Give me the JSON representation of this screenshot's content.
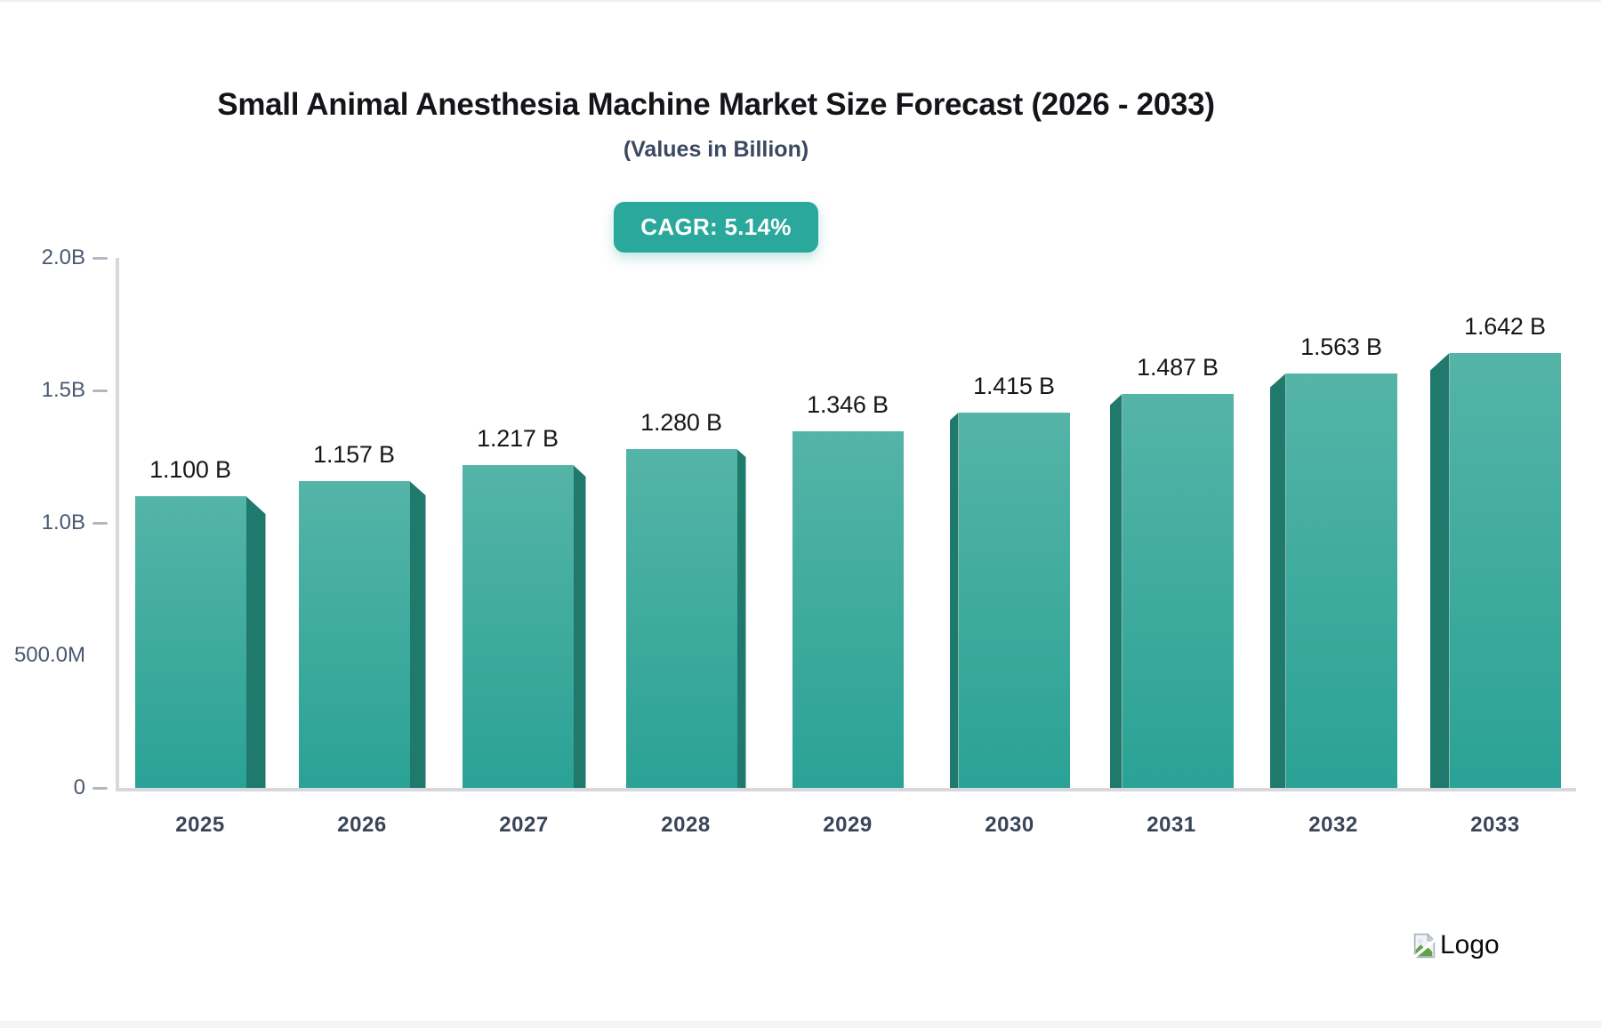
{
  "header": {
    "title": "Small Animal Anesthesia Machine Market Size Forecast (2026 - 2033)",
    "subtitle": "(Values in Billion)",
    "cagr_badge": "CAGR: 5.14%"
  },
  "footer": {
    "logo_alt": "Logo"
  },
  "colors": {
    "bar_top": "#54b4a7",
    "bar_bottom": "#2aa295",
    "bar_side": "#20796d",
    "badge_bg": "#2aa89c",
    "axis_line": "#d6d8de",
    "tick_mark": "#b2b8c2"
  },
  "chart_data": {
    "type": "bar",
    "title": "Small Animal Anesthesia Machine Market Size Forecast (2026 - 2033)",
    "subtitle": "(Values in Billion)",
    "annotation": "CAGR: 5.14%",
    "categories": [
      "2025",
      "2026",
      "2027",
      "2028",
      "2029",
      "2030",
      "2031",
      "2032",
      "2033"
    ],
    "values": [
      1.1,
      1.157,
      1.217,
      1.28,
      1.346,
      1.415,
      1.487,
      1.563,
      1.642
    ],
    "value_labels": [
      "1.100 B",
      "1.157 B",
      "1.217 B",
      "1.280 B",
      "1.346 B",
      "1.415 B",
      "1.487 B",
      "1.563 B",
      "1.642 B"
    ],
    "xlabel": "",
    "ylabel": "",
    "ylim": [
      0,
      2.0
    ],
    "yticks": [
      {
        "label": "2.0B",
        "value": 2.0,
        "dash": true
      },
      {
        "label": "1.5B",
        "value": 1.5,
        "dash": true
      },
      {
        "label": "1.0B",
        "value": 1.0,
        "dash": true
      },
      {
        "label": "500.0M",
        "value": 0.5,
        "dash": false
      },
      {
        "label": "0",
        "value": 0.0,
        "dash": true
      }
    ],
    "grid": false,
    "legend": false,
    "style": "3d-perspective-columns"
  }
}
